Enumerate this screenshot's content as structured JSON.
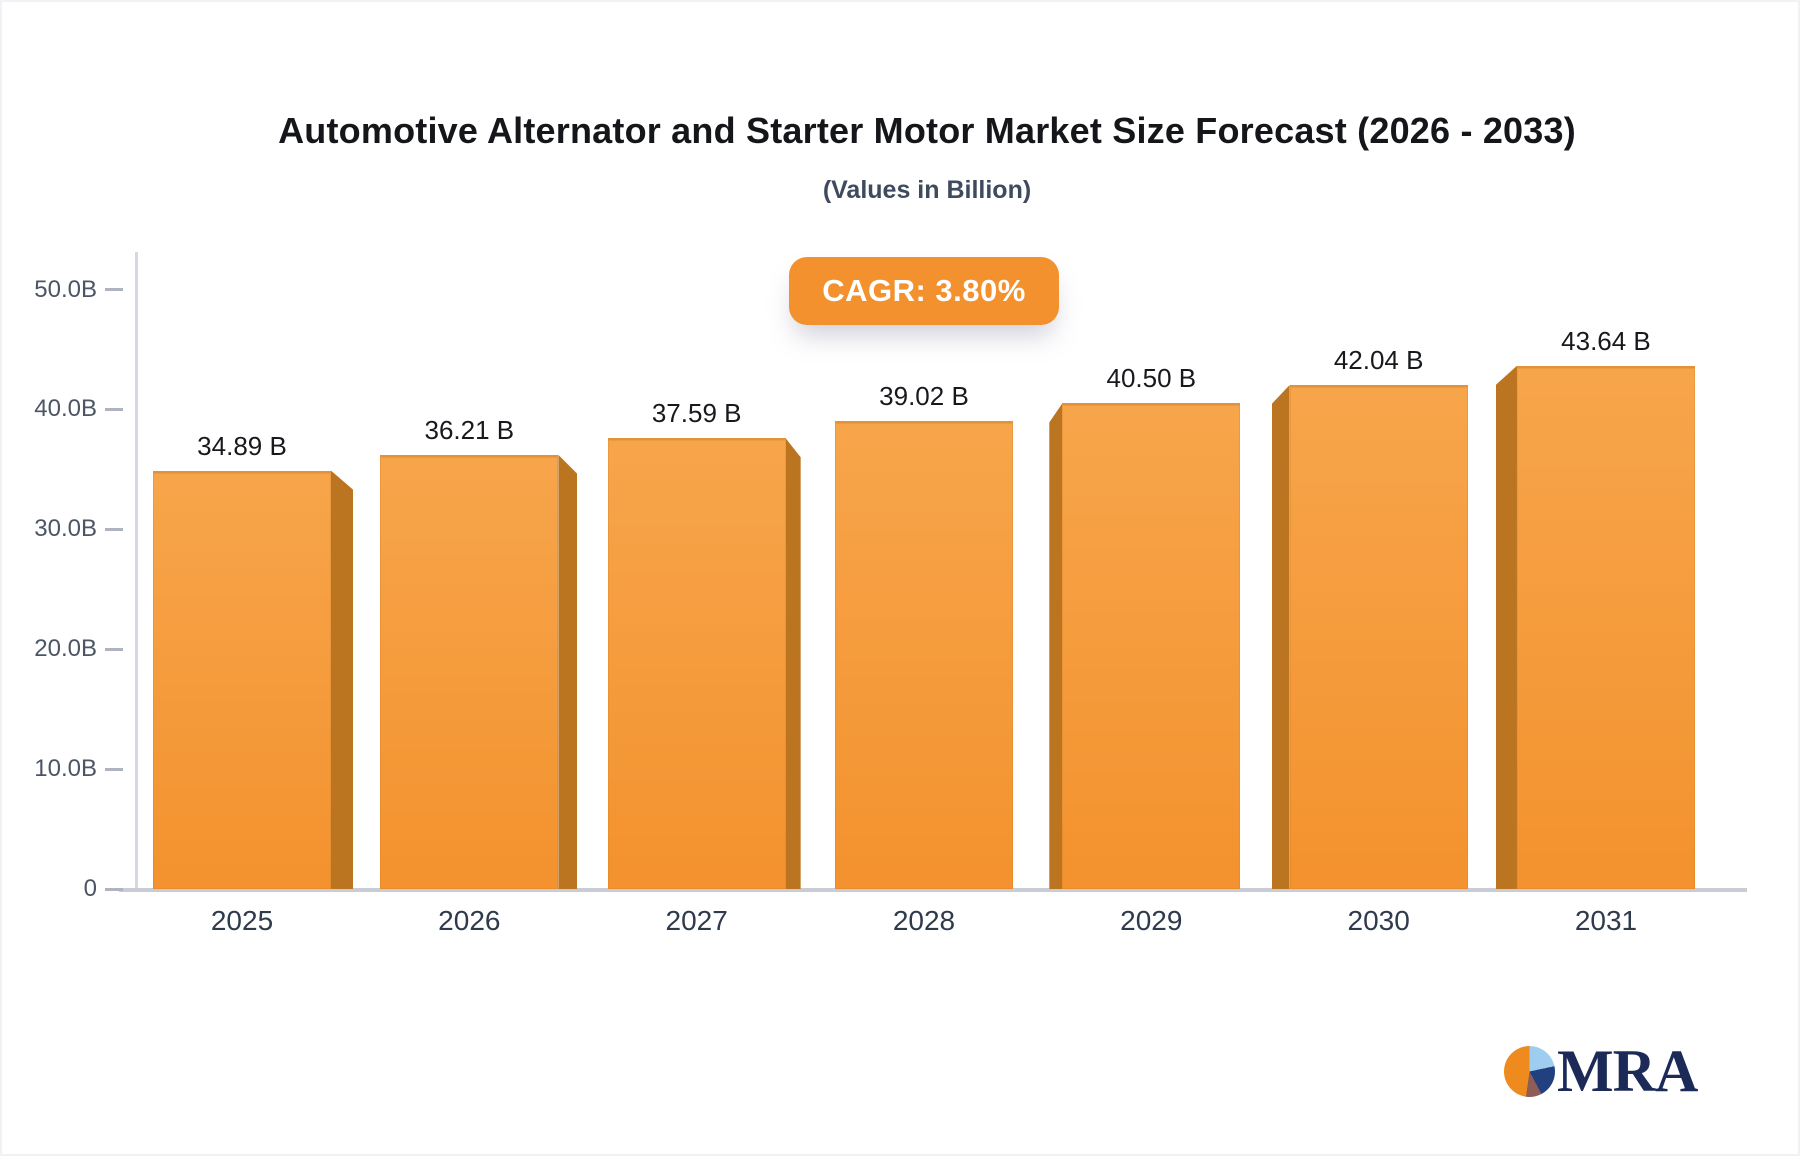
{
  "chart_data": {
    "type": "bar",
    "title": "Automotive Alternator and Starter Motor Market Size Forecast (2026 - 2033)",
    "subtitle": "(Values in Billion)",
    "cagr_badge": "CAGR: 3.80%",
    "categories": [
      "2025",
      "2026",
      "2027",
      "2028",
      "2029",
      "2030",
      "2031"
    ],
    "values": [
      34.89,
      36.21,
      37.59,
      39.02,
      40.5,
      42.04,
      43.64
    ],
    "value_labels": [
      "34.89 B",
      "36.21 B",
      "37.59 B",
      "39.02 B",
      "40.50 B",
      "42.04 B",
      "43.64 B"
    ],
    "ylabel": "",
    "xlabel": "",
    "ylim": [
      0,
      50
    ],
    "grid": false,
    "legend": false,
    "y_ticks": [
      {
        "label": "0",
        "value": 0
      },
      {
        "label": "10.0B",
        "value": 10
      },
      {
        "label": "20.0B",
        "value": 20
      },
      {
        "label": "30.0B",
        "value": 30
      },
      {
        "label": "40.0B",
        "value": 40
      },
      {
        "label": "50.0B",
        "value": 50
      }
    ],
    "colors": {
      "bar_top": "#f7a54b",
      "bar_bottom": "#f3922e",
      "bar_side": "#bb7420",
      "badge": "#f2912d",
      "axis_line": "#c9ccd4",
      "tick_text": "#4b5565"
    }
  },
  "footer": {
    "logo_text": "MRA"
  }
}
